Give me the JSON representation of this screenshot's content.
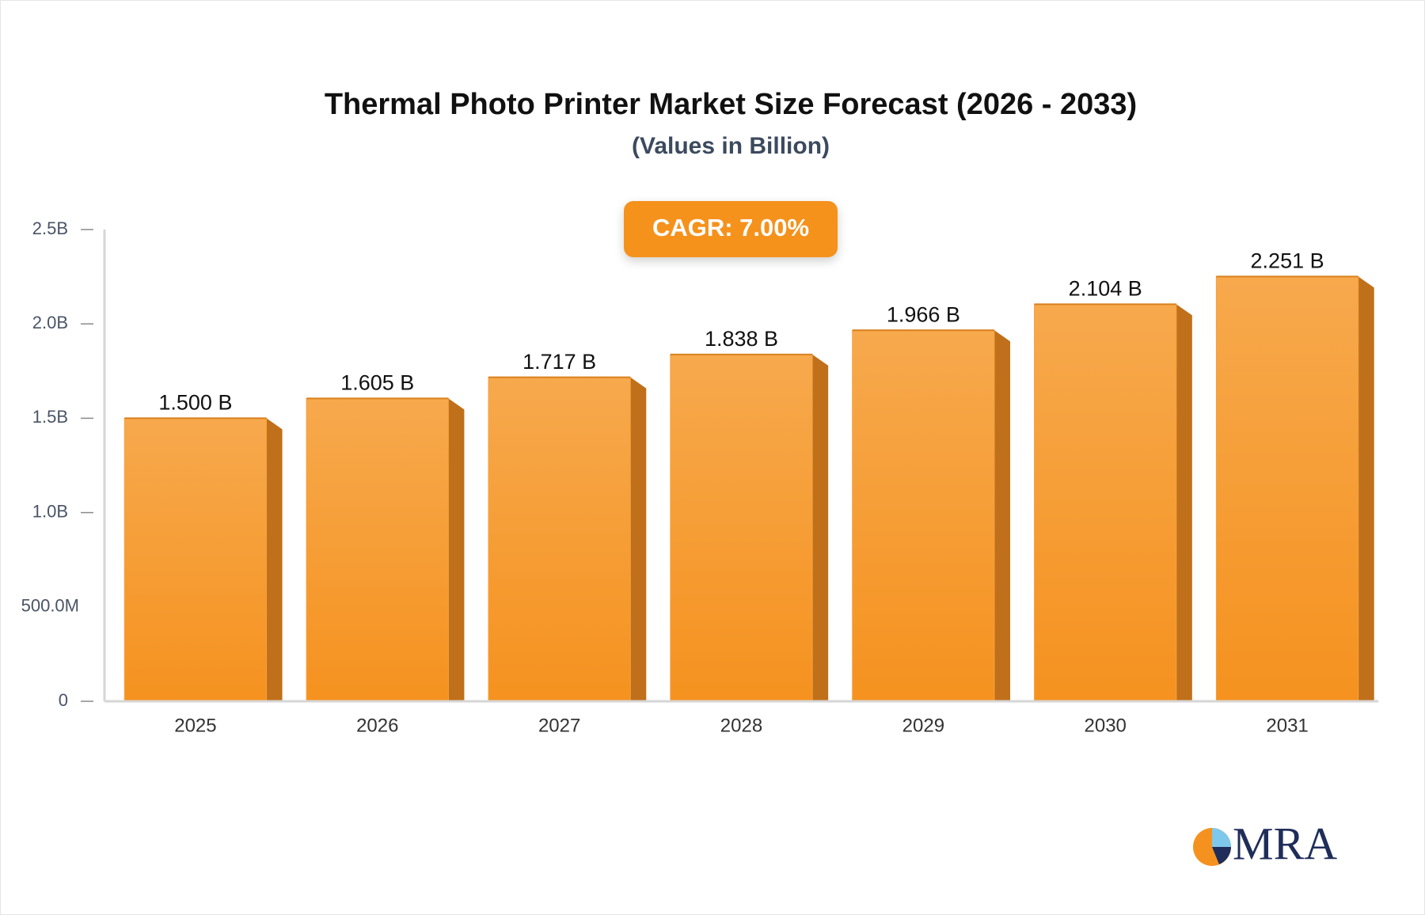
{
  "chart_data": {
    "type": "bar",
    "title": "Thermal Photo Printer Market Size Forecast (2026 - 2033)",
    "subtitle": "(Values in Billion)",
    "annotation": "CAGR: 7.00%",
    "categories": [
      "2025",
      "2026",
      "2027",
      "2028",
      "2029",
      "2030",
      "2031"
    ],
    "values": [
      1.5,
      1.605,
      1.717,
      1.838,
      1.966,
      2.104,
      2.251
    ],
    "value_labels": [
      "1.500 B",
      "1.605 B",
      "1.717 B",
      "1.838 B",
      "1.966 B",
      "2.104 B",
      "2.251 B"
    ],
    "color": "#f5a03c",
    "ylim": [
      0,
      2.5
    ],
    "yticks": [
      0,
      {
        "value": 0.5,
        "label": "500.0M"
      },
      {
        "value": 1,
        "label": "1.0B"
      },
      {
        "value": 1.5,
        "label": "1.5B"
      },
      {
        "value": 2,
        "label": "2.0B"
      },
      {
        "value": 2.5,
        "label": "2.5B"
      }
    ],
    "grid": false
  },
  "brand": "MRA"
}
